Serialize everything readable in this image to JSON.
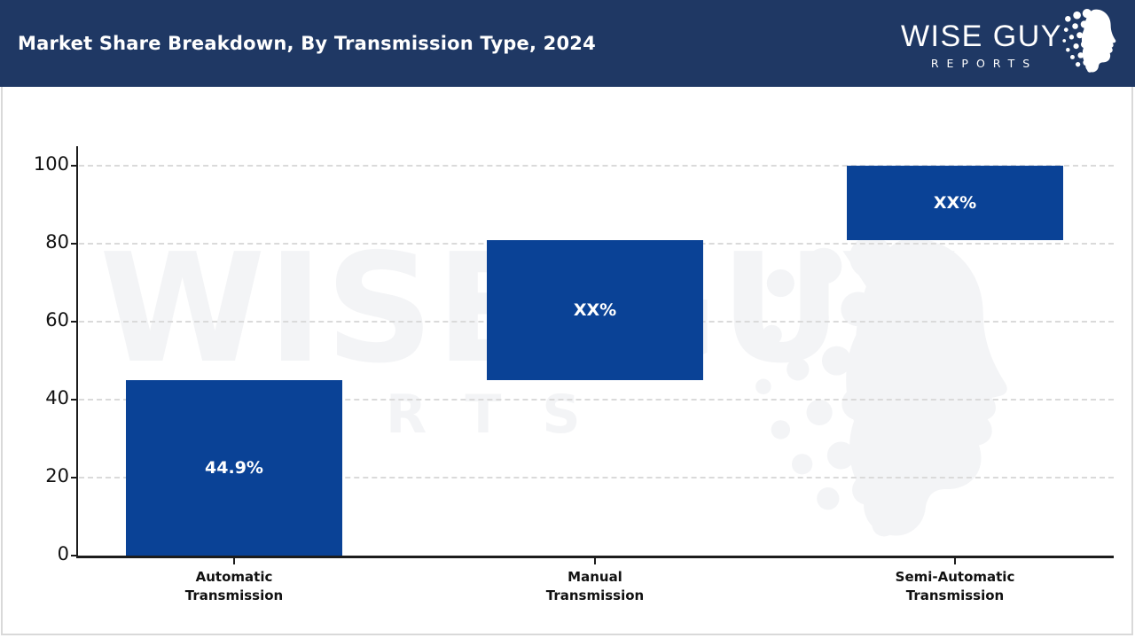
{
  "header": {
    "title": "Market Share Breakdown, By Transmission Type, 2024",
    "logo": {
      "name": "WISE GUY",
      "tagline": "REPORTS"
    }
  },
  "watermark": {
    "big_text": "WISE GUY",
    "sub_text": "PORTS"
  },
  "colors": {
    "header_bg": "#1f3864",
    "bar": "#0a4296",
    "axis": "#1c1c1c",
    "grid": "#dadada",
    "watermark": "#f3f4f6"
  },
  "chart_data": {
    "type": "bar",
    "variant": "waterfall",
    "title": "Market Share Breakdown, By Transmission Type, 2024",
    "xlabel": "",
    "ylabel": "",
    "ylim": [
      0,
      105
    ],
    "yticks": [
      0,
      20,
      40,
      60,
      80,
      100
    ],
    "grid": {
      "horizontal": true,
      "style": "dashed"
    },
    "legend": "none",
    "categories": [
      {
        "lines": [
          "Automatic",
          "Transmission"
        ]
      },
      {
        "lines": [
          "Manual",
          "Transmission"
        ]
      },
      {
        "lines": [
          "Semi-Automatic",
          "Transmission"
        ]
      }
    ],
    "segments": [
      {
        "category": "Automatic Transmission",
        "start": 0,
        "end": 44.9,
        "label": "44.9%"
      },
      {
        "category": "Manual Transmission",
        "start": 44.9,
        "end": 80.9,
        "label": "XX%"
      },
      {
        "category": "Semi-Automatic Transmission",
        "start": 80.9,
        "end": 100,
        "label": "XX%"
      }
    ]
  }
}
